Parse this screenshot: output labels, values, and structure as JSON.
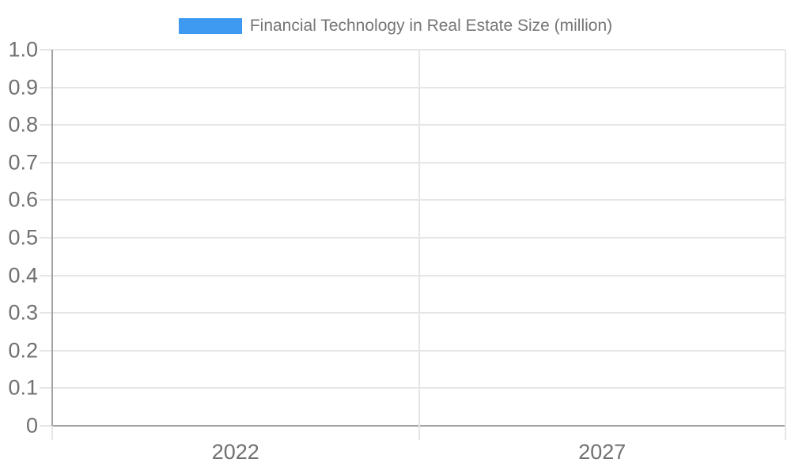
{
  "chart_data": {
    "type": "bar",
    "title": "Financial Technology in Real Estate Size (million)",
    "categories": [
      "2022",
      "2027"
    ],
    "series": [
      {
        "name": "Financial Technology in Real Estate Size (million)",
        "color": "#3d9af0",
        "values": []
      }
    ],
    "xlabel": "",
    "ylabel": "",
    "ylim": [
      0,
      1
    ],
    "ytick_step": 0.1,
    "ytick_labels": [
      "0",
      "0.1",
      "0.2",
      "0.3",
      "0.4",
      "0.5",
      "0.6",
      "0.7",
      "0.8",
      "0.9",
      "1.0"
    ],
    "grid": true,
    "legend_position": "top-center",
    "plot_empty": true
  },
  "colors": {
    "accent": "#3d9af0",
    "axis_line": "#a3a3a3",
    "gridline": "#e6e6e6",
    "title_text": "#757575",
    "axis_text": "#707070",
    "background": "#ffffff"
  }
}
